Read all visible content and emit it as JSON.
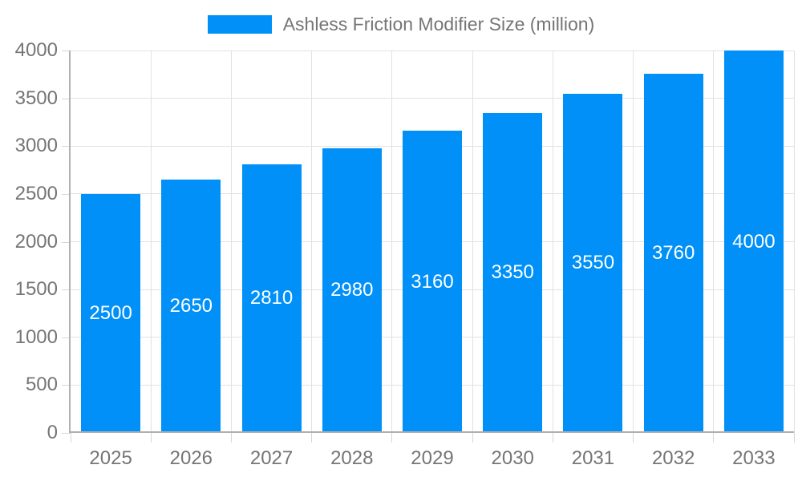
{
  "page": {
    "background": "#ffffff"
  },
  "chart_data": {
    "type": "bar",
    "title": "Ashless Friction Modifier Size (million)",
    "categories": [
      "2025",
      "2026",
      "2027",
      "2028",
      "2029",
      "2030",
      "2031",
      "2032",
      "2033"
    ],
    "values": [
      2500,
      2650,
      2810,
      2980,
      3160,
      3350,
      3550,
      3760,
      4000
    ],
    "xlabel": "",
    "ylabel": "",
    "ylim": [
      0,
      4000
    ],
    "ytick_step": 500,
    "yticks": [
      0,
      500,
      1000,
      1500,
      2000,
      2500,
      3000,
      3500,
      4000
    ],
    "grid": true,
    "legend_position": "top",
    "bar_color": "#0090f8",
    "value_label_color": "#ffffff",
    "axis_text_color": "#757575",
    "grid_color": "#e2e2e2",
    "axis_line_color": "#b0b0b0",
    "tick_color": "#d6d6d6"
  }
}
